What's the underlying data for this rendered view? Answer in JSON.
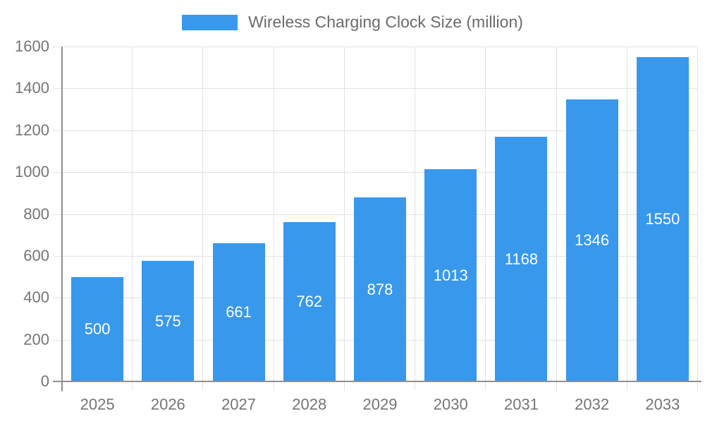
{
  "chart_data": {
    "type": "bar",
    "title": "Wireless Charging Clock Size (million)",
    "categories": [
      "2025",
      "2026",
      "2027",
      "2028",
      "2029",
      "2030",
      "2031",
      "2032",
      "2033"
    ],
    "series": [
      {
        "name": "Wireless Charging Clock Size (million)",
        "values": [
          500,
          575,
          661,
          762,
          878,
          1013,
          1168,
          1346,
          1550
        ]
      }
    ],
    "xlabel": "",
    "ylabel": "",
    "ylim": [
      0,
      1600
    ],
    "ytick_step": 200,
    "yticks": [
      0,
      200,
      400,
      600,
      800,
      1000,
      1200,
      1400,
      1600
    ],
    "grid": true,
    "legend_position": "top-center",
    "bar_value_labels_visible": true,
    "colors": {
      "bar": "#3898ec",
      "bar_label_text": "#ffffff",
      "axis_line": "#8e8e8e",
      "gridline": "#e2e2e2",
      "axis_text": "#757575",
      "legend_text": "#6b6b6b",
      "background": "#ffffff"
    }
  }
}
